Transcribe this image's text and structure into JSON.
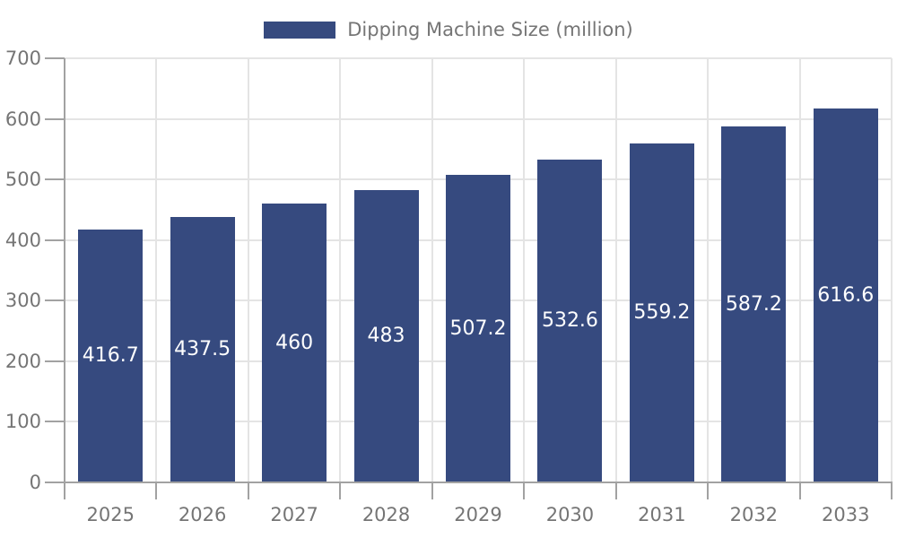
{
  "chart_data": {
    "type": "bar",
    "title": "",
    "legend_label": "Dipping Machine Size (million)",
    "categories": [
      "2025",
      "2026",
      "2027",
      "2028",
      "2029",
      "2030",
      "2031",
      "2032",
      "2033"
    ],
    "values": [
      416.7,
      437.5,
      460,
      483,
      507.2,
      532.6,
      559.2,
      587.2,
      616.6
    ],
    "value_labels": [
      "416.7",
      "437.5",
      "460",
      "483",
      "507.2",
      "532.6",
      "559.2",
      "587.2",
      "616.6"
    ],
    "xlabel": "",
    "ylabel": "",
    "ylim": [
      0,
      700
    ],
    "yticks": [
      0,
      100,
      200,
      300,
      400,
      500,
      600,
      700
    ],
    "grid": true,
    "legend_position": "top-center",
    "bar_label_position": "inside-middle"
  },
  "colors": {
    "bar": "#364A7F",
    "bar_label_text": "#FFFFFF",
    "grid_line": "#E4E4E4",
    "axis_line": "#A2A2A2",
    "tick_text": "#757575",
    "legend_text": "#757575",
    "background": "#FFFFFF"
  }
}
